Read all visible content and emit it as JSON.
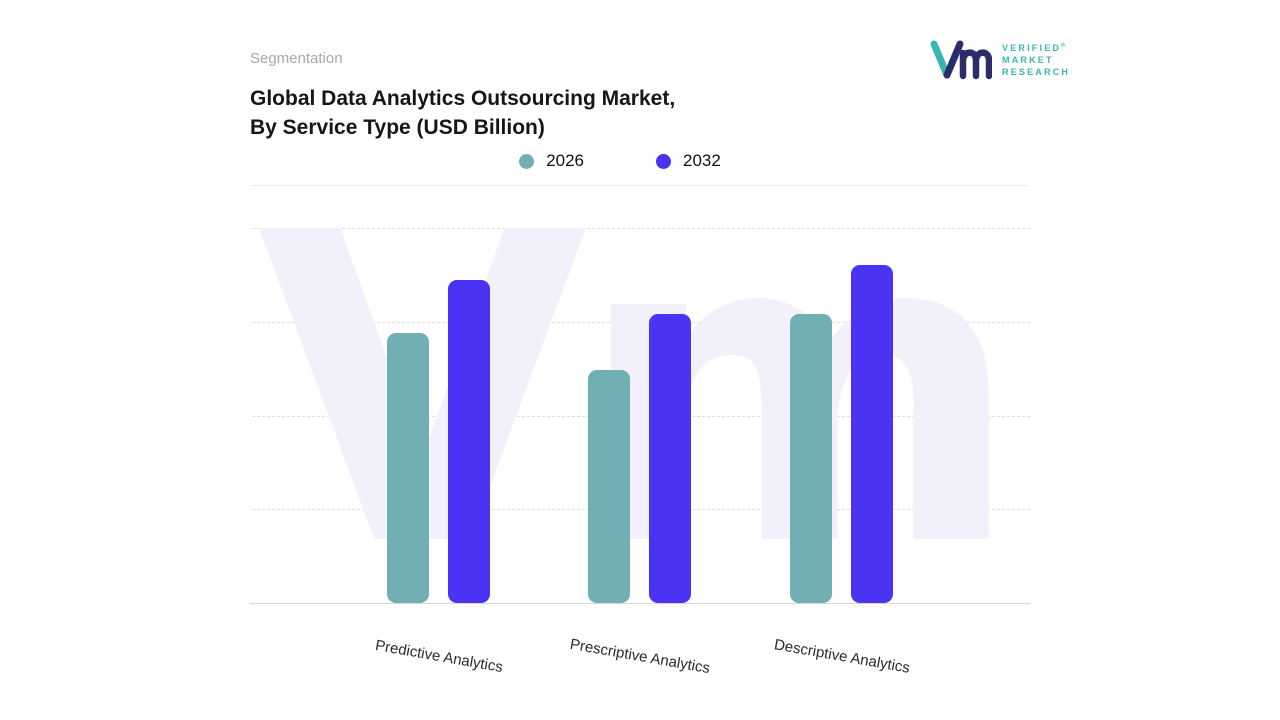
{
  "page": {
    "eyebrow": "Segmentation",
    "title_line1": "Global Data Analytics Outsourcing Market,",
    "title_line2": "By Service Type (USD Billion)"
  },
  "legend": [
    {
      "label": "2026",
      "color": "#72afb3"
    },
    {
      "label": "2032",
      "color": "#4a33f3"
    }
  ],
  "chart_data": {
    "type": "bar",
    "title": "Global Data Analytics Outsourcing Market, By Service Type (USD Billion)",
    "categories": [
      "Predictive Analytics",
      "Prescriptive Analytics",
      "Descriptive Analytics"
    ],
    "series": [
      {
        "name": "2026",
        "color": "#72afb3",
        "values": [
          72,
          62,
          77
        ]
      },
      {
        "name": "2032",
        "color": "#4a33f3",
        "values": [
          86,
          77,
          90
        ]
      }
    ],
    "xlabel": "",
    "ylabel": "",
    "ylim": [
      0,
      100
    ],
    "yticks_visible": false,
    "grid": "horizontal-dashed",
    "legend_position": "top-center",
    "note": "No numeric axis labels are shown in the figure; values are estimated on a relative 0-100 scale from bar heights."
  },
  "brand": {
    "line1": "VERIFIED",
    "reg": "®",
    "line2": "MARKET",
    "line3": "RESEARCH",
    "watermark_text": "Vm"
  },
  "colors": {
    "teal": "#72afb3",
    "purple": "#4a33f3",
    "watermark": "#f2f1fb",
    "gridline": "#dedede",
    "axis": "#d6d6d6",
    "title_text": "#161616",
    "eyebrow_text": "#a8a8a8",
    "logo_navy": "#2a2d68",
    "logo_teal": "#38b5af"
  }
}
